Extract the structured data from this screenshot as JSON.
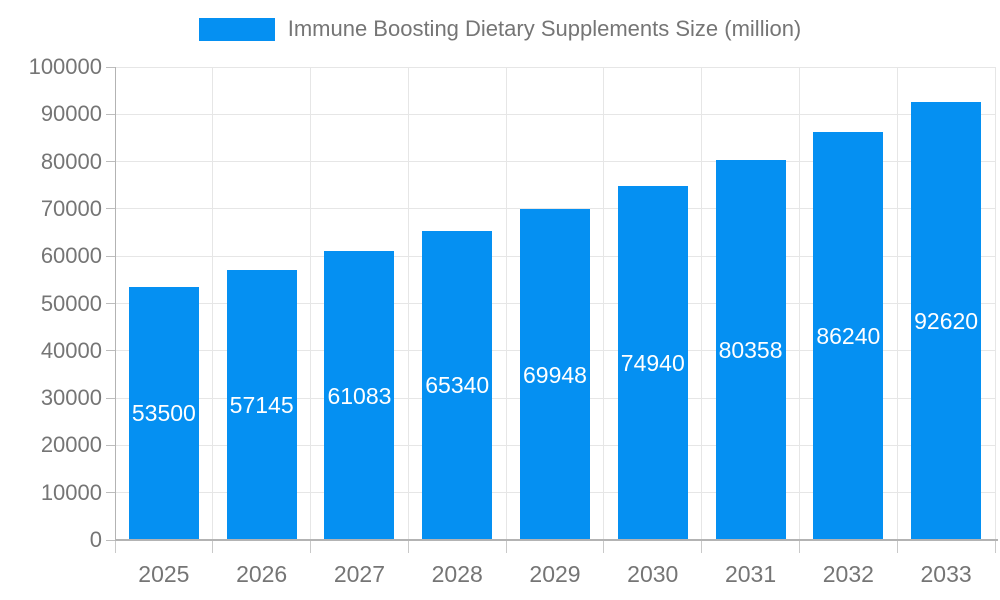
{
  "legend": {
    "label": "Immune Boosting Dietary Supplements Size (million)"
  },
  "colors": {
    "bar": "#0590F2",
    "axis_text": "#757575",
    "grid": "#e6e6e6",
    "left_edge_line": "#b3b3b3",
    "baseline": "#b3b3b3",
    "bar_label": "#ffffff",
    "background": "#ffffff"
  },
  "chart_data": {
    "type": "bar",
    "title": "Immune Boosting Dietary Supplements Size (million)",
    "series_name": "Immune Boosting Dietary Supplements Size (million)",
    "categories": [
      "2025",
      "2026",
      "2027",
      "2028",
      "2029",
      "2030",
      "2031",
      "2032",
      "2033"
    ],
    "values": [
      53500,
      57145,
      61083,
      65340,
      69948,
      74940,
      80358,
      86240,
      92620
    ],
    "bar_value_labels": [
      "53500",
      "57145",
      "61083",
      "65340",
      "69948",
      "74940",
      "80358",
      "86240",
      "92620"
    ],
    "xlabel": "",
    "ylabel": "",
    "ylim": [
      0,
      100000
    ],
    "ytick_step": 10000,
    "yticks": [
      0,
      10000,
      20000,
      30000,
      40000,
      50000,
      60000,
      70000,
      80000,
      90000,
      100000
    ],
    "ytick_labels": [
      "0",
      "10000",
      "20000",
      "30000",
      "40000",
      "50000",
      "60000",
      "70000",
      "80000",
      "90000",
      "100000"
    ],
    "grid": true,
    "legend_position": "top",
    "bar_labels_visible": true,
    "bar_label_position": "middle"
  }
}
